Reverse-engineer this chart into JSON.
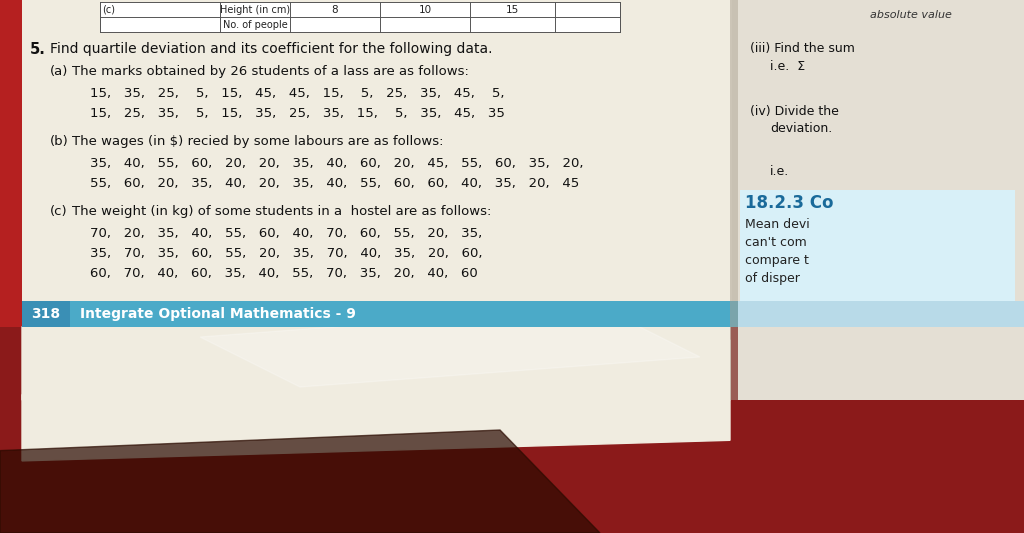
{
  "title_number": "5.",
  "title_text": "Find quartile deviation and its coefficient for the following data.",
  "part_a_label": "(a)",
  "part_a_intro": "The marks obtained by 26 students of a lass are as follows:",
  "part_a_data": [
    "15,   35,   25,    5,   15,   45,   45,   15,    5,   25,   35,   45,    5,",
    "15,   25,   35,    5,   15,   35,   25,   35,   15,    5,   35,   45,   35"
  ],
  "part_b_label": "(b)",
  "part_b_intro": "The wages (in $) recied by some labours are as follows:",
  "part_b_data": [
    "35,   40,   55,   60,   20,   20,   35,   40,   60,   20,   45,   55,   60,   35,   20,",
    "55,   60,   20,   35,   40,   20,   35,   40,   55,   60,   60,   40,   35,   20,   45"
  ],
  "part_c_label": "(c)",
  "part_c_intro": "The weight (in kg) of some students in a  hostel are as follows:",
  "part_c_data": [
    "70,   20,   35,   40,   55,   60,   40,   70,   60,   55,   20,   35,",
    "35,   70,   35,   60,   55,   20,   35,   70,   40,   35,   20,   60,",
    "60,   70,   40,   60,   35,   40,   55,   70,   35,   20,   40,   60"
  ],
  "right_col_iii": "(iii) Find the sum",
  "right_col_ie1": "i.e.  Σ",
  "right_col_iv": "(iv) Divide the",
  "right_col_dev": "deviation.",
  "right_col_ie2": "i.e.",
  "right_box_title": "18.2.3 Co",
  "right_box_line1": "Mean devi",
  "right_box_line2": "can't com",
  "right_box_line3": "compare t",
  "right_box_line4": "of disper",
  "footer_num": "318",
  "footer_text": "Integrate Optional Mathematics - 9",
  "table_row_label": "(c)",
  "table_top_label": "Height (in cm)",
  "table_bottom_label": "No. of people",
  "table_vals_top": [
    "",
    "8",
    "10",
    "15",
    "",
    "",
    ""
  ],
  "table_vals_bot": [
    "",
    "",
    "",
    "",
    "",
    "",
    ""
  ],
  "absolute_val": "absolute value",
  "page_bg_main": "#ede8dd",
  "page_bg_right": "#ede8dd",
  "left_strip_color": "#b52020",
  "footer_bg": "#4baac8",
  "footer_num_bg": "#3a8fb5",
  "content_bg": "#f0ece0"
}
